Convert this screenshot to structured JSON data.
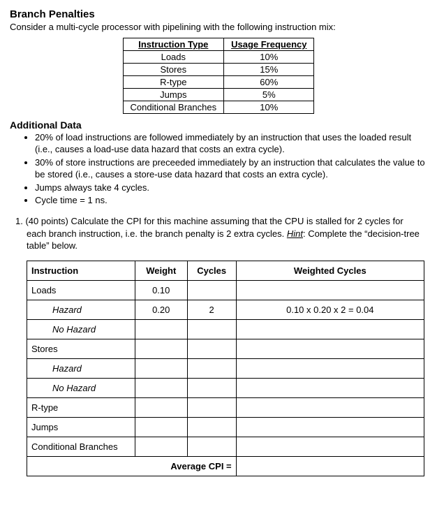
{
  "title": "Branch Penalties",
  "intro": "Consider a multi-cycle processor with pipelining with the following instruction mix:",
  "instrTable": {
    "headers": [
      "Instruction Type",
      "Usage Frequency"
    ],
    "rows": [
      [
        "Loads",
        "10%"
      ],
      [
        "Stores",
        "15%"
      ],
      [
        "R-type",
        "60%"
      ],
      [
        "Jumps",
        "5%"
      ],
      [
        "Conditional Branches",
        "10%"
      ]
    ]
  },
  "additionalHeader": "Additional Data",
  "bullets": [
    "20% of load instructions are followed immediately by an instruction that uses the loaded result (i.e., causes a load-use data hazard that costs an extra cycle).",
    "30% of store instructions are preceeded immediately by an instruction that calculates the value to be stored (i.e., causes a store-use data hazard that costs an extra cycle).",
    "Jumps always take 4 cycles.",
    "Cycle time = 1 ns."
  ],
  "question": {
    "number": "1.",
    "points": "(40 points)",
    "textBefore": " Calculate the CPI for this machine assuming that the CPU is stalled for 2 cycles for each branch instruction, i.e. the branch penalty is 2 extra cycles.  ",
    "hintLabel": "Hint",
    "textAfter": ":  Complete the “decision-tree table” below."
  },
  "decisionTable": {
    "headers": [
      "Instruction",
      "Weight",
      "Cycles",
      "Weighted Cycles"
    ],
    "rows": [
      {
        "label": "Loads",
        "indent": false,
        "weight": "0.10",
        "cycles": "",
        "weighted": ""
      },
      {
        "label": "Hazard",
        "indent": true,
        "weight": "0.20",
        "cycles": "2",
        "weighted": "0.10 x 0.20 x 2 = 0.04"
      },
      {
        "label": "No Hazard",
        "indent": true,
        "weight": "",
        "cycles": "",
        "weighted": ""
      },
      {
        "label": "Stores",
        "indent": false,
        "weight": "",
        "cycles": "",
        "weighted": ""
      },
      {
        "label": "Hazard",
        "indent": true,
        "weight": "",
        "cycles": "",
        "weighted": ""
      },
      {
        "label": "No Hazard",
        "indent": true,
        "weight": "",
        "cycles": "",
        "weighted": ""
      },
      {
        "label": "R-type",
        "indent": false,
        "weight": "",
        "cycles": "",
        "weighted": ""
      },
      {
        "label": "Jumps",
        "indent": false,
        "weight": "",
        "cycles": "",
        "weighted": ""
      },
      {
        "label": "Conditional Branches",
        "indent": false,
        "weight": "",
        "cycles": "",
        "weighted": ""
      }
    ],
    "avgLabel": "Average CPI ="
  }
}
